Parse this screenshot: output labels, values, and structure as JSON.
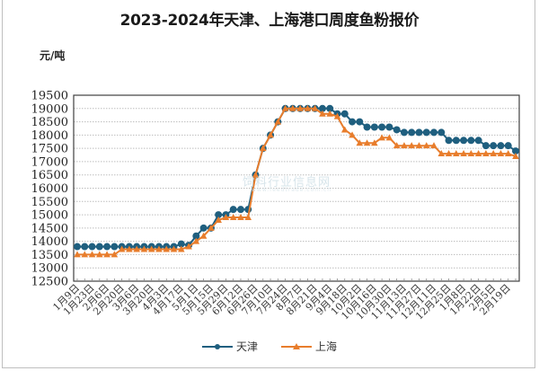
{
  "chart_data": {
    "type": "line",
    "title": "2023-2024年天津、上海港口周度鱼粉报价",
    "ylabel": "元/吨",
    "xlabel": "",
    "ylim": [
      12500,
      19500
    ],
    "yticks": [
      12500,
      13000,
      13500,
      14000,
      14500,
      15000,
      15500,
      16000,
      16500,
      17000,
      17500,
      18000,
      18500,
      19000,
      19500
    ],
    "grid": true,
    "legend_position": "bottom",
    "x_tick_labels": [
      "1月9日",
      "1月23日",
      "2月6日",
      "2月20日",
      "3月6日",
      "3月20日",
      "4月3日",
      "4月17日",
      "5月1日",
      "5月15日",
      "5月29日",
      "6月12日",
      "6月26日",
      "7月10日",
      "7月24日",
      "8月7日",
      "8月21日",
      "9月4日",
      "9月18日",
      "10月2日",
      "10月16日",
      "10月30日",
      "11月13日",
      "11月27日",
      "12月11日",
      "12月25日",
      "1月8日",
      "1月22日",
      "2月5日",
      "2月19日"
    ],
    "x": [
      "1月9日",
      "1月16日",
      "1月23日",
      "1月30日",
      "2月6日",
      "2月13日",
      "2月20日",
      "2月27日",
      "3月6日",
      "3月13日",
      "3月20日",
      "3月27日",
      "4月3日",
      "4月10日",
      "4月17日",
      "4月24日",
      "5月1日",
      "5月8日",
      "5月15日",
      "5月22日",
      "5月29日",
      "6月5日",
      "6月12日",
      "6月19日",
      "6月26日",
      "7月3日",
      "7月10日",
      "7月17日",
      "7月24日",
      "7月31日",
      "8月7日",
      "8月14日",
      "8月21日",
      "8月28日",
      "9月4日",
      "9月11日",
      "9月18日",
      "9月25日",
      "10月2日",
      "10月9日",
      "10月16日",
      "10月23日",
      "10月30日",
      "11月6日",
      "11月13日",
      "11月20日",
      "11月27日",
      "12月4日",
      "12月11日",
      "12月18日",
      "12月25日",
      "1月1日",
      "1月8日",
      "1月15日",
      "1月22日",
      "1月29日",
      "2月5日",
      "2月12日",
      "2月19日",
      "2月26日"
    ],
    "series": [
      {
        "name": "天津",
        "color": "#1f5f7f",
        "marker": "circle",
        "values": [
          13800,
          13800,
          13800,
          13800,
          13800,
          13800,
          13800,
          13800,
          13800,
          13800,
          13800,
          13800,
          13800,
          13800,
          13900,
          13850,
          14200,
          14500,
          14500,
          15000,
          15000,
          15200,
          15200,
          15200,
          16500,
          17500,
          18000,
          18500,
          19000,
          19000,
          19000,
          19000,
          19000,
          19000,
          19000,
          18800,
          18800,
          18500,
          18500,
          18300,
          18300,
          18300,
          18300,
          18200,
          18100,
          18100,
          18100,
          18100,
          18100,
          18100,
          17800,
          17800,
          17800,
          17800,
          17800,
          17600,
          17600,
          17600,
          17600,
          17400
        ]
      },
      {
        "name": "上海",
        "color": "#e87d2c",
        "marker": "triangle",
        "values": [
          13500,
          13500,
          13500,
          13500,
          13500,
          13500,
          13700,
          13700,
          13700,
          13700,
          13700,
          13700,
          13700,
          13700,
          13700,
          13800,
          14000,
          14200,
          14500,
          14800,
          14900,
          14900,
          14900,
          14900,
          16500,
          17500,
          18000,
          18500,
          19000,
          19000,
          19000,
          19000,
          19000,
          18800,
          18800,
          18700,
          18200,
          18000,
          17700,
          17700,
          17700,
          17900,
          17900,
          17600,
          17600,
          17600,
          17600,
          17600,
          17600,
          17300,
          17300,
          17300,
          17300,
          17300,
          17300,
          17300,
          17300,
          17300,
          17300,
          17200
        ]
      }
    ]
  },
  "header": {
    "title": "2023-2024年天津、上海港口周度鱼粉报价",
    "unit": "元/吨"
  },
  "legend": {
    "items": [
      {
        "label": "天津",
        "color": "#1f5f7f"
      },
      {
        "label": "上海",
        "color": "#e87d2c"
      }
    ]
  },
  "watermark": {
    "text": "饲料行业信息网",
    "sub": "www.feedtrade.com.cn"
  }
}
